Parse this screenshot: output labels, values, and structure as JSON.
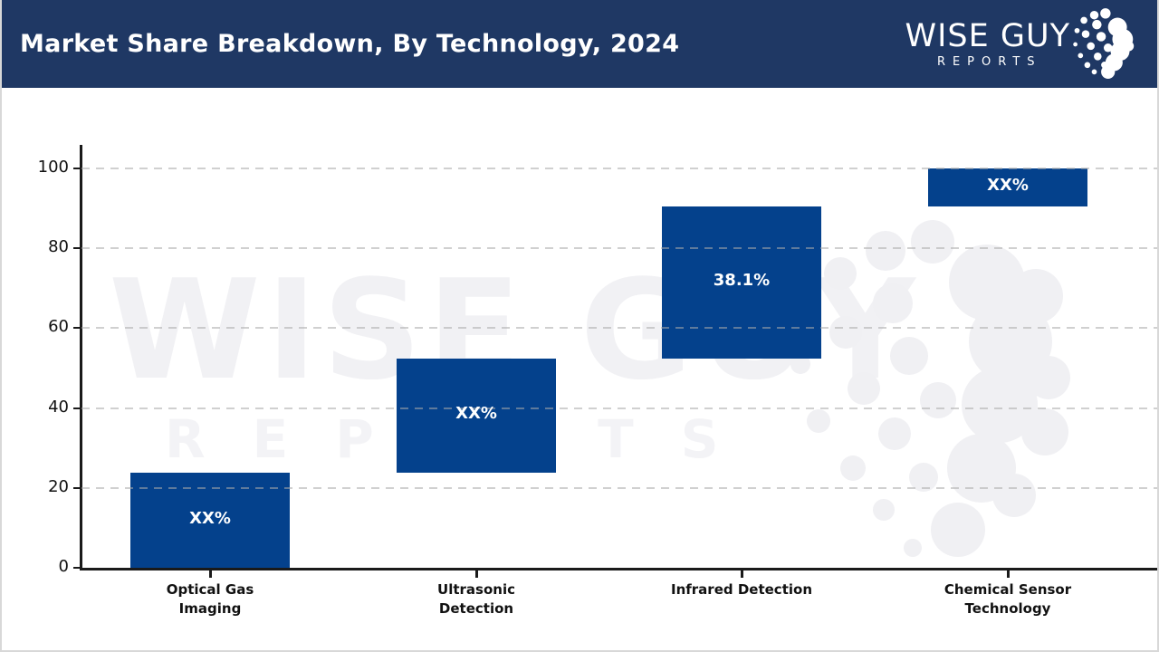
{
  "header": {
    "title": "Market Share Breakdown, By Technology, 2024",
    "bg_color": "#1F3864",
    "logo": {
      "line1": "WISE GUY",
      "line2": "REPORTS"
    }
  },
  "watermark": {
    "line1": "WISE GUY",
    "line2": "REPORTS"
  },
  "chart_data": {
    "type": "waterfall",
    "title": "Market Share Breakdown, By Technology, 2024",
    "categories": [
      "Optical Gas\nImaging",
      "Ultrasonic\nDetection",
      "Infrared Detection",
      "Chemical Sensor\nTechnology"
    ],
    "segments": [
      {
        "category": "Optical Gas Imaging",
        "start": 0,
        "end": 23.8,
        "value": 23.8,
        "label": "XX%"
      },
      {
        "category": "Ultrasonic Detection",
        "start": 23.8,
        "end": 52.4,
        "value": 28.6,
        "label": "XX%"
      },
      {
        "category": "Infrared Detection",
        "start": 52.4,
        "end": 90.5,
        "value": 38.1,
        "label": "38.1%"
      },
      {
        "category": "Chemical Sensor Technology",
        "start": 90.5,
        "end": 100,
        "value": 9.5,
        "label": "XX%"
      }
    ],
    "yticks": [
      0,
      20,
      40,
      60,
      80,
      100
    ],
    "ylim": [
      0,
      105
    ],
    "ylabel": "",
    "xlabel": "",
    "grid": "horizontal-dashed",
    "bar_color": "#04418C",
    "label_color": "#ffffff"
  }
}
